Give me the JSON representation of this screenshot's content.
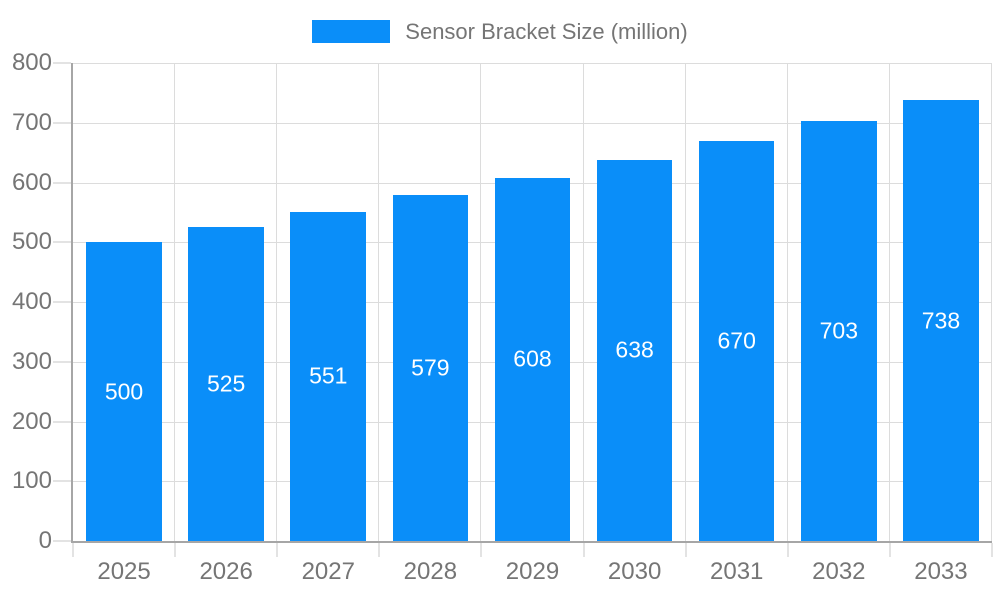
{
  "legend": {
    "label": "Sensor Bracket Size (million)"
  },
  "chart_data": {
    "type": "bar",
    "title": "",
    "categories": [
      "2025",
      "2026",
      "2027",
      "2028",
      "2029",
      "2030",
      "2031",
      "2032",
      "2033"
    ],
    "series": [
      {
        "name": "Sensor Bracket Size (million)",
        "values": [
          500,
          525,
          551,
          579,
          608,
          638,
          670,
          703,
          738
        ]
      }
    ],
    "ylim": [
      0,
      800
    ],
    "yticks": [
      0,
      100,
      200,
      300,
      400,
      500,
      600,
      700,
      800
    ],
    "grid": true,
    "legend_position": "top",
    "value_labels": "centered-inside-bars",
    "colors": {
      "bar": "#0a8ef9",
      "value_label": "#ffffff",
      "axis_text": "#757575",
      "grid_line": "#dcdcdc",
      "axis_line": "#a6a6a6",
      "tick_line": "#e3e3e3"
    }
  }
}
